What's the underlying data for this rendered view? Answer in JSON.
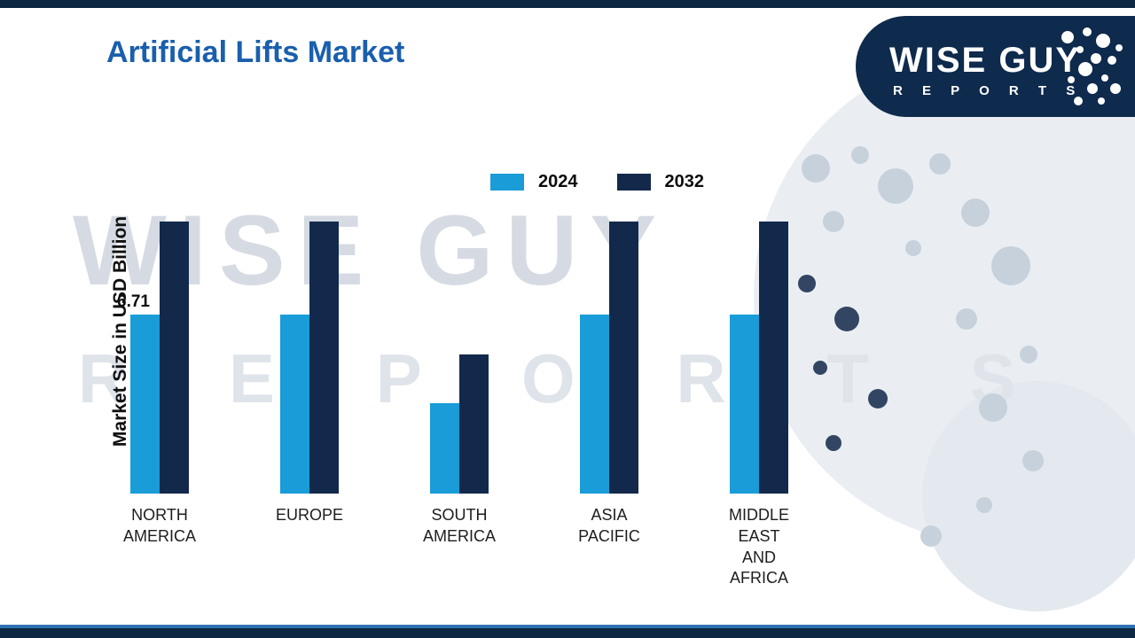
{
  "header": {
    "title": "Artificial Lifts Market"
  },
  "logo": {
    "line1": "WISE GUY",
    "line2": "R E P O R T S",
    "head_icon": "dotted-face-profile"
  },
  "watermark": {
    "line1": "WISE GUY",
    "line2": "R E P O R T S"
  },
  "colors": {
    "title": "#1a5fad",
    "bar_2024": "#1a9cd8",
    "bar_2032": "#13294b",
    "top_border": "#0e2742",
    "bottom_accent": "#2d70b4",
    "logo_background": "#0e2a4d",
    "watermark_gray": "#d6dbe3"
  },
  "chart_data": {
    "type": "bar",
    "title": "Artificial Lifts Market",
    "xlabel": "",
    "ylabel": "Market Size in USD Billion",
    "categories": [
      "NORTH AMERICA",
      "EUROPE",
      "SOUTH AMERICA",
      "ASIA PACIFIC",
      "MIDDLE EAST AND AFRICA"
    ],
    "category_lines": [
      [
        "NORTH",
        "AMERICA"
      ],
      [
        "EUROPE"
      ],
      [
        "SOUTH",
        "AMERICA"
      ],
      [
        "ASIA",
        "PACIFIC"
      ],
      [
        "MIDDLE",
        "EAST",
        "AND",
        "AFRICA"
      ]
    ],
    "series": [
      {
        "name": "2024",
        "color": "#1a9cd8",
        "values": [
          6.71,
          6.7,
          3.4,
          6.7,
          6.7
        ]
      },
      {
        "name": "2032",
        "color": "#13294b",
        "values": [
          10.2,
          10.2,
          5.2,
          10.2,
          10.2
        ]
      }
    ],
    "point_labels": [
      {
        "category_index": 0,
        "series": "2024",
        "text": "6.71"
      }
    ],
    "ylim": [
      0,
      10.2
    ],
    "grid": false,
    "legend_position": "top"
  }
}
